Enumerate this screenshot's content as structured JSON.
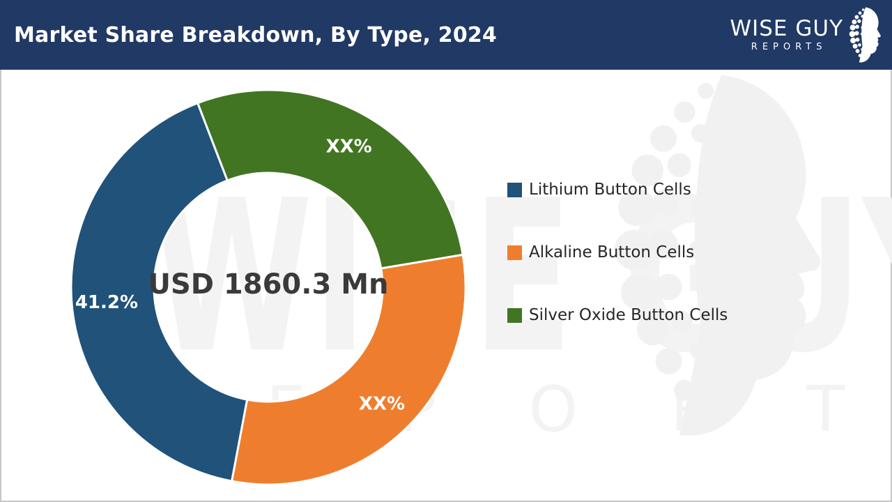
{
  "header": {
    "title": "Market Share Breakdown, By Type, 2024",
    "logo": {
      "line1": "WISE GUY",
      "line2": "REPORTS"
    }
  },
  "watermark": {
    "line1": "WISE GUY",
    "line2": "R E P O R T S"
  },
  "chart_data": {
    "type": "donut",
    "title": "Market Share Breakdown, By Type, 2024",
    "center_label": "USD 1860.3 Mn",
    "start_angle_deg": -21,
    "direction": "clockwise",
    "legend_position": "right",
    "segments": [
      {
        "name": "Silver Oxide Button Cells",
        "value_percent": 28.2,
        "label": "XX%",
        "color": "#417522"
      },
      {
        "name": "Alkaline Button Cells",
        "value_percent": 30.6,
        "label": "XX%",
        "color": "#ee7e2e"
      },
      {
        "name": "Lithium Button Cells",
        "value_percent": 41.2,
        "label": "41.2%",
        "color": "#20527a"
      }
    ]
  },
  "legend": {
    "items": [
      {
        "label": "Lithium Button Cells",
        "color": "#20527a"
      },
      {
        "label": "Alkaline Button Cells",
        "color": "#ee7e2e"
      },
      {
        "label": "Silver Oxide Button Cells",
        "color": "#417522"
      }
    ]
  },
  "colors": {
    "header_bg": "#213965",
    "center_text": "#3a3a3a",
    "watermark": "#f3f3f3",
    "frame_border": "#c6c6c6"
  }
}
